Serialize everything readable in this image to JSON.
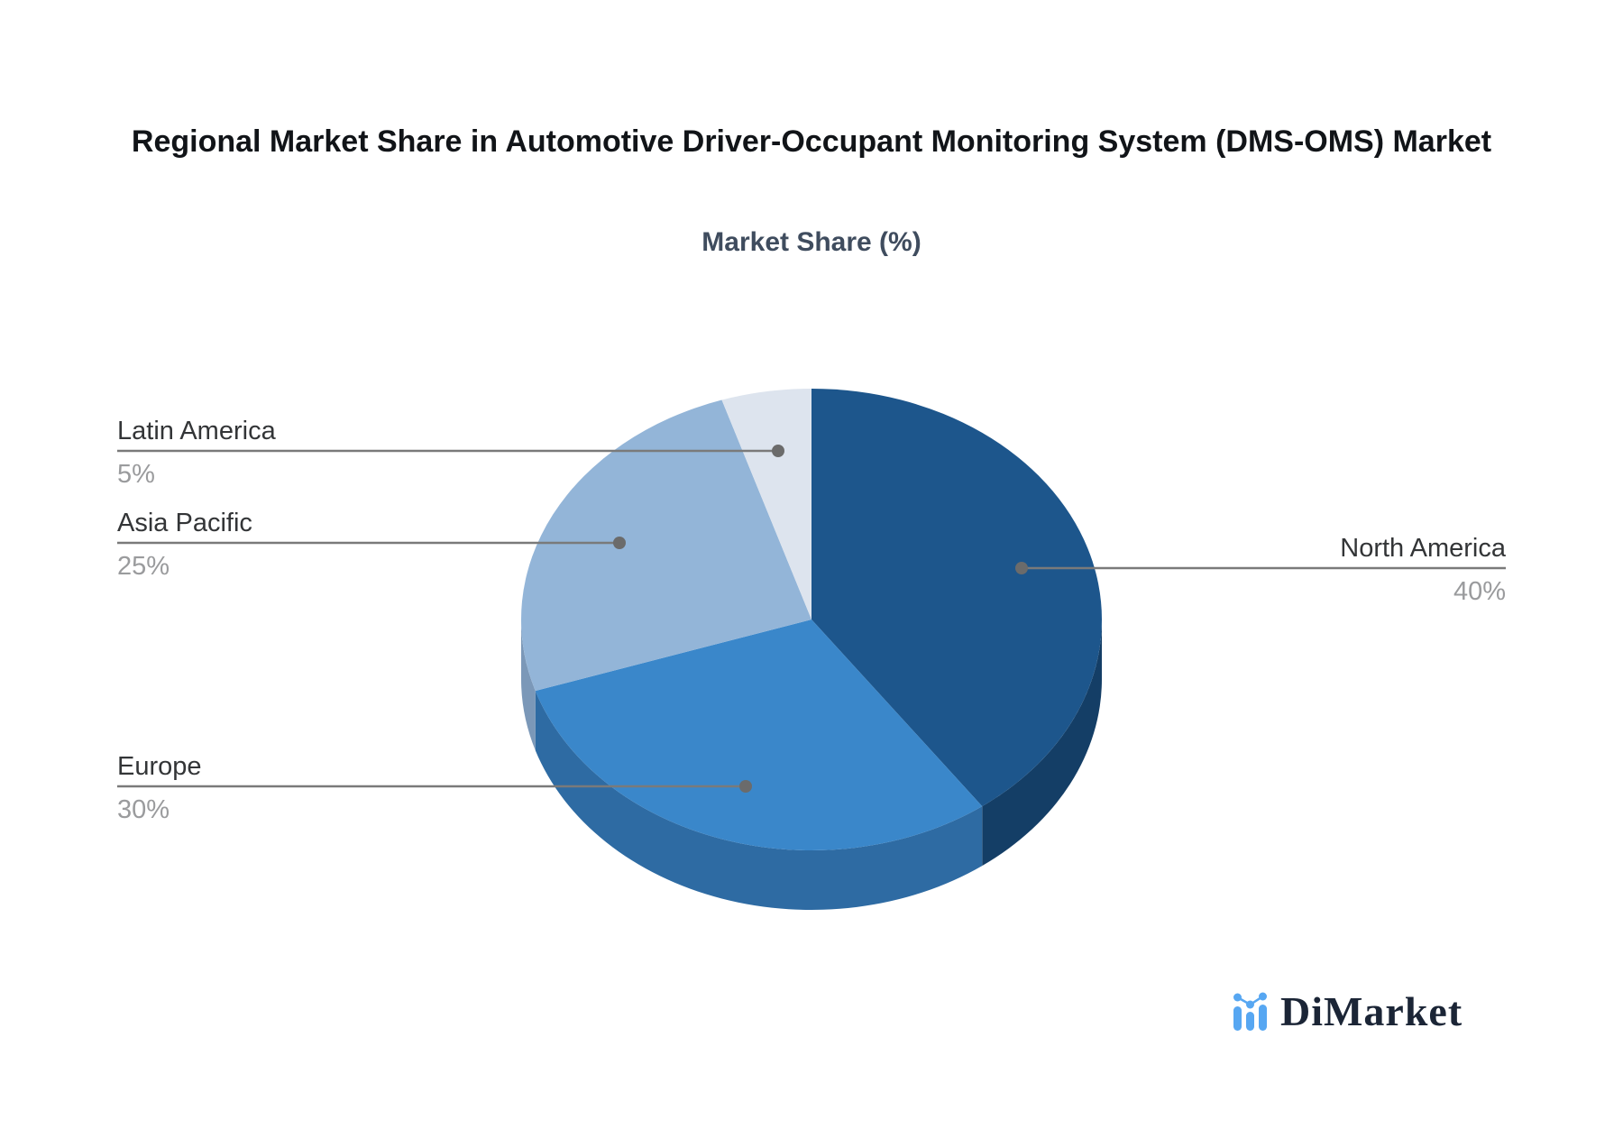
{
  "title": "Regional Market Share in Automotive Driver-Occupant Monitoring System (DMS-OMS) Market",
  "subtitle": "Market Share (%)",
  "brand": {
    "name": "DiMarket",
    "icon": "bar-line-chart-icon"
  },
  "chart_data": {
    "type": "pie",
    "style": "3d",
    "title": "Regional Market Share in Automotive Driver-Occupant Monitoring System (DMS-OMS) Market",
    "subtitle": "Market Share (%)",
    "unit": "%",
    "legend": "none",
    "start_angle_deg": 0,
    "direction": "clockwise",
    "labels": [
      "North America",
      "Europe",
      "Asia Pacific",
      "Latin America"
    ],
    "values": [
      40,
      30,
      25,
      5
    ],
    "connector_color": "#7a7a7a",
    "dot_color": "#6b6b6b",
    "slices": [
      {
        "label": "North America",
        "value": 40,
        "pct_label": "40%",
        "color": "#1d568c",
        "side_color": "#143e66"
      },
      {
        "label": "Europe",
        "value": 30,
        "pct_label": "30%",
        "color": "#3a87ca",
        "side_color": "#2e6ba3"
      },
      {
        "label": "Asia Pacific",
        "value": 25,
        "pct_label": "25%",
        "color": "#93b5d8",
        "side_color": "#7b98b8"
      },
      {
        "label": "Latin America",
        "value": 5,
        "pct_label": "5%",
        "color": "#dde4ee",
        "side_color": "#c2cddd"
      }
    ]
  }
}
